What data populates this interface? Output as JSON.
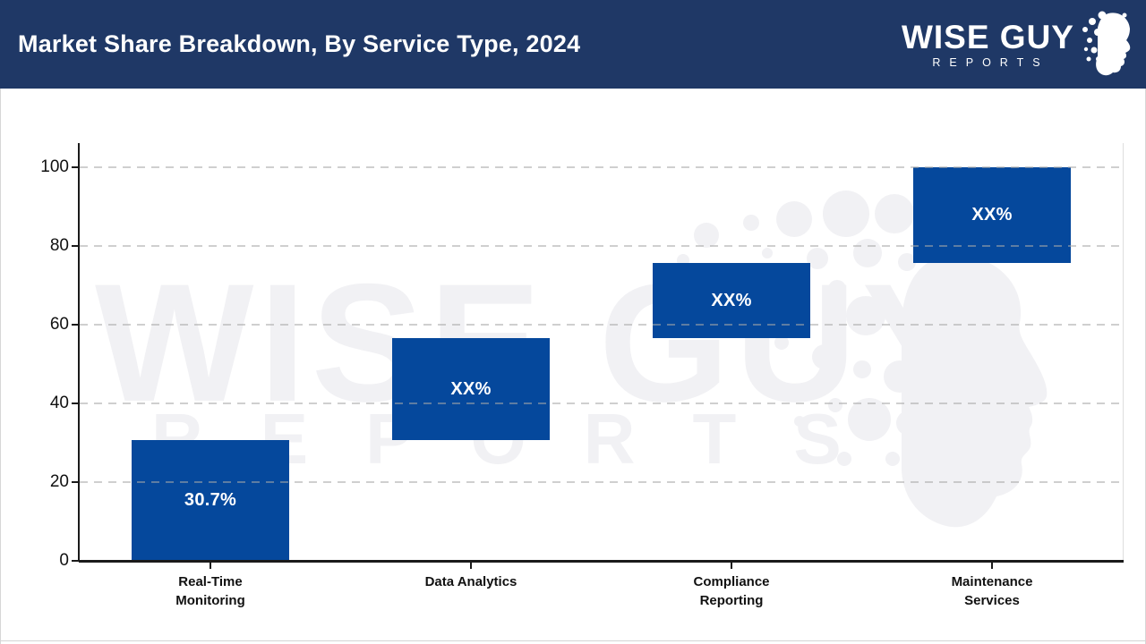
{
  "header": {
    "title": "Market Share Breakdown, By Service Type, 2024",
    "logo": {
      "brand": "WISE GUY",
      "sub": "REPORTS"
    }
  },
  "watermark": {
    "brand": "WISE GUY",
    "sub": "REPORTS"
  },
  "chart_data": {
    "type": "bar",
    "subtype": "waterfall",
    "title": "Market Share Breakdown, By Service Type, 2024",
    "categories": [
      "Real-Time\nMonitoring",
      "Data Analytics",
      "Compliance\nReporting",
      "Maintenance\nServices"
    ],
    "series": [
      {
        "category": "Real-Time Monitoring",
        "start": 0,
        "end": 30.7,
        "label": "30.7%"
      },
      {
        "category": "Data Analytics",
        "start": 30.7,
        "end": 56.5,
        "label": "XX%"
      },
      {
        "category": "Compliance Reporting",
        "start": 56.5,
        "end": 75.6,
        "label": "XX%"
      },
      {
        "category": "Maintenance Services",
        "start": 75.6,
        "end": 100,
        "label": "XX%"
      }
    ],
    "yticks": [
      0,
      20,
      40,
      60,
      80,
      100
    ],
    "ylim": [
      0,
      100
    ],
    "xlabel": "",
    "ylabel": "",
    "grid": "dashed-horizontal",
    "legend": "none",
    "bar_color": "#05489c",
    "bar_label_color": "#ffffff"
  },
  "colors": {
    "header_bg": "#1f3866",
    "bar": "#05489c",
    "watermark": "#f1f1f4",
    "axis": "#1a1a1a",
    "grid": "#c8c8c8"
  }
}
